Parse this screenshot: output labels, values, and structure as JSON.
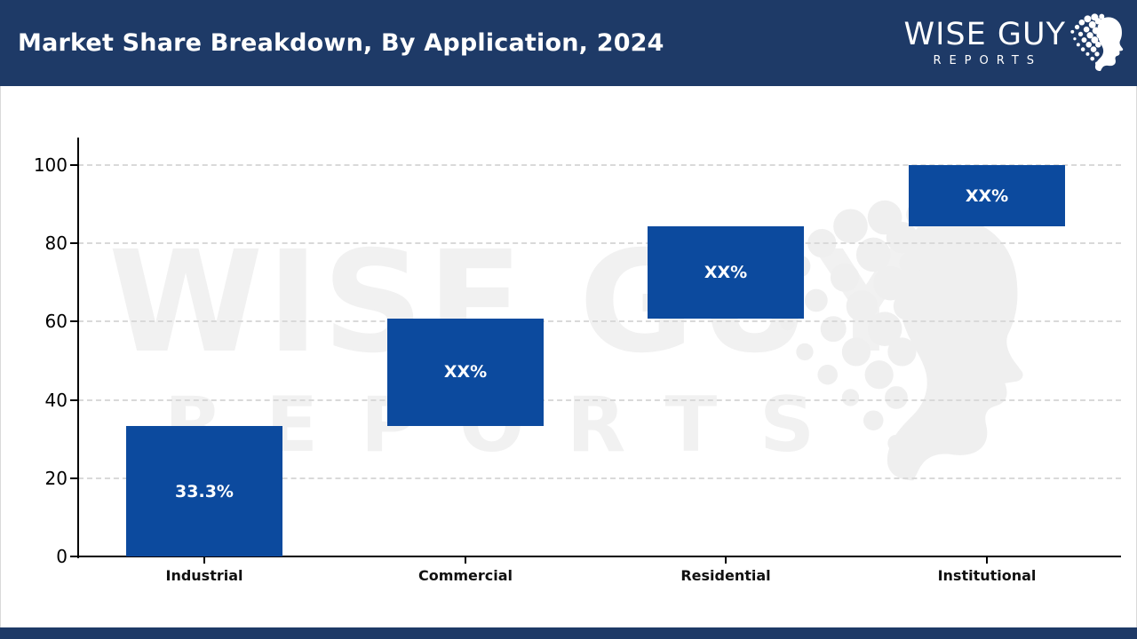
{
  "header": {
    "title": "Market Share Breakdown, By Application, 2024",
    "logo": {
      "wordmark": "WISE GUY",
      "subtext": "REPORTS"
    }
  },
  "watermark": {
    "wordmark": "WISE GUY",
    "subtext": "REPORTS"
  },
  "chart_data": {
    "type": "bar",
    "subtype": "waterfall-segments",
    "title": "Market Share Breakdown, By Application, 2024",
    "categories": [
      "Industrial",
      "Commercial",
      "Residential",
      "Institutional"
    ],
    "segments": [
      {
        "category": "Industrial",
        "start": 0,
        "end": 33.3,
        "label": "33.3%"
      },
      {
        "category": "Commercial",
        "start": 33.3,
        "end": 60.8,
        "label": "XX%"
      },
      {
        "category": "Residential",
        "start": 60.8,
        "end": 84.3,
        "label": "XX%"
      },
      {
        "category": "Institutional",
        "start": 84.3,
        "end": 100,
        "label": "XX%"
      }
    ],
    "xlabel": "",
    "ylabel": "",
    "ylim": [
      0,
      105
    ],
    "yticks": [
      0,
      20,
      40,
      60,
      80,
      100
    ],
    "grid": "horizontal-dashed",
    "legend": "none"
  },
  "colors": {
    "header_bg": "#1e3a67",
    "footer_bg": "#1e3a67",
    "bar": "#0c4a9e",
    "bar_label": "#ffffff",
    "grid": "#d9d9d9",
    "watermark": "#f1f1f1",
    "axis": "#000000"
  }
}
